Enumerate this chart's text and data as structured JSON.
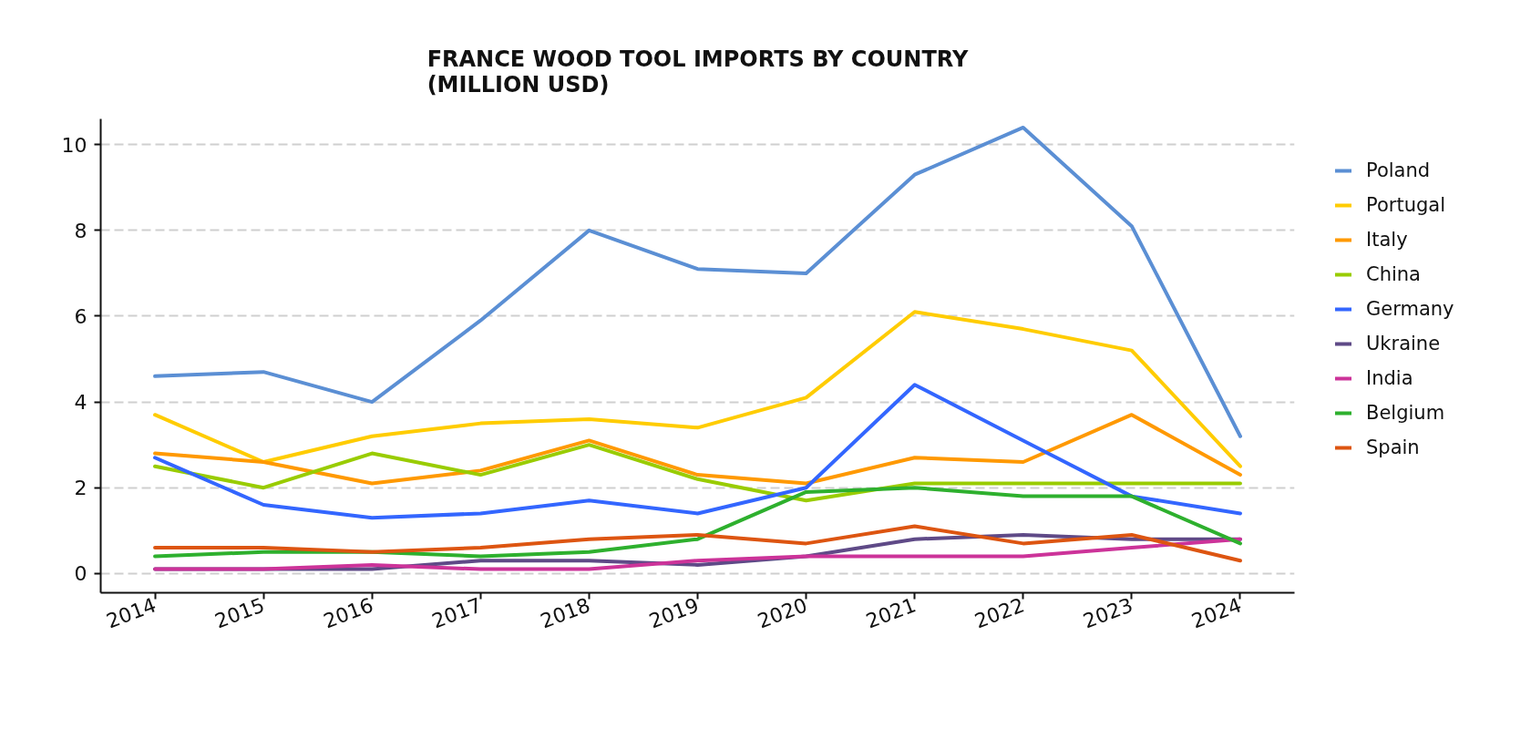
{
  "chart_data": {
    "type": "line",
    "title": "FRANCE WOOD TOOL IMPORTS BY COUNTRY\n(MILLION USD)",
    "x": [
      2014,
      2015,
      2016,
      2017,
      2018,
      2019,
      2020,
      2021,
      2022,
      2023,
      2024
    ],
    "xlim": [
      2013.5,
      2024.5
    ],
    "xticks": [
      2014,
      2015,
      2016,
      2017,
      2018,
      2019,
      2020,
      2021,
      2022,
      2023,
      2024
    ],
    "ylim": [
      -0.45,
      10.6
    ],
    "yticks": [
      0,
      2,
      4,
      6,
      8,
      10
    ],
    "grid": "y",
    "legend": "right",
    "series": [
      {
        "name": "Poland",
        "color": "#5b8fd4",
        "values": [
          4.6,
          4.7,
          4.0,
          5.9,
          8.0,
          7.1,
          7.0,
          9.3,
          10.4,
          8.1,
          3.2
        ]
      },
      {
        "name": "Portugal",
        "color": "#ffcc00",
        "values": [
          3.7,
          2.6,
          3.2,
          3.5,
          3.6,
          3.4,
          4.1,
          6.1,
          5.7,
          5.2,
          2.5
        ]
      },
      {
        "name": "Italy",
        "color": "#ff9900",
        "values": [
          2.8,
          2.6,
          2.1,
          2.4,
          3.1,
          2.3,
          2.1,
          2.7,
          2.6,
          3.7,
          2.3
        ]
      },
      {
        "name": "China",
        "color": "#99cc00",
        "values": [
          2.5,
          2.0,
          2.8,
          2.3,
          3.0,
          2.2,
          1.7,
          2.1,
          2.1,
          2.1,
          2.1
        ]
      },
      {
        "name": "Germany",
        "color": "#3366ff",
        "values": [
          2.7,
          1.6,
          1.3,
          1.4,
          1.7,
          1.4,
          2.0,
          4.4,
          3.1,
          1.8,
          1.4
        ]
      },
      {
        "name": "Ukraine",
        "color": "#5f4a87",
        "values": [
          0.1,
          0.1,
          0.1,
          0.3,
          0.3,
          0.2,
          0.4,
          0.8,
          0.9,
          0.8,
          0.8
        ]
      },
      {
        "name": "India",
        "color": "#cc3399",
        "values": [
          0.1,
          0.1,
          0.2,
          0.1,
          0.1,
          0.3,
          0.4,
          0.4,
          0.4,
          0.6,
          0.8
        ]
      },
      {
        "name": "Belgium",
        "color": "#2eb02e",
        "values": [
          0.4,
          0.5,
          0.5,
          0.4,
          0.5,
          0.8,
          1.9,
          2.0,
          1.8,
          1.8,
          0.7
        ]
      },
      {
        "name": "Spain",
        "color": "#dd5511",
        "values": [
          0.6,
          0.6,
          0.5,
          0.6,
          0.8,
          0.9,
          0.7,
          1.1,
          0.7,
          0.9,
          0.3
        ]
      }
    ]
  }
}
